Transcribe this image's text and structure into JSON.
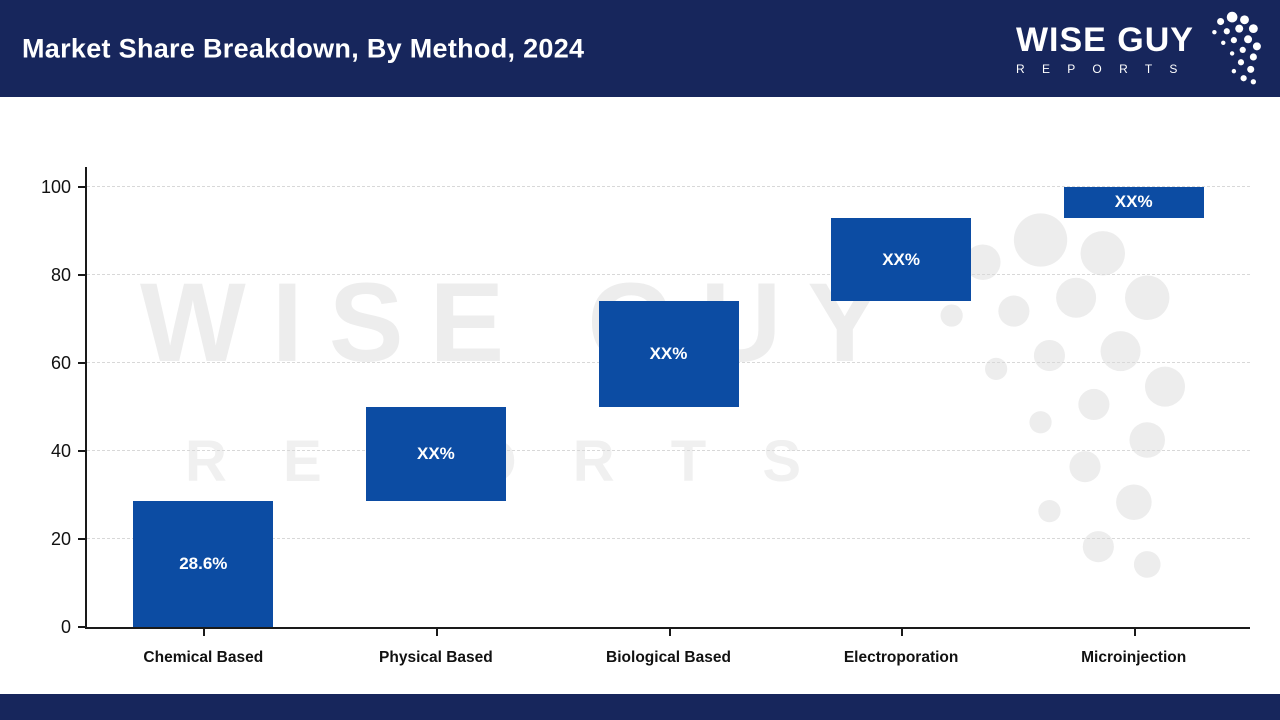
{
  "header": {
    "title": "Market Share Breakdown, By Method, 2024",
    "logo": {
      "line1": "WISE GUY",
      "line2": "R E P O R T S"
    }
  },
  "watermark": {
    "line1": "WISE GUY",
    "line2": "R E P O R T S"
  },
  "colors": {
    "header_bg": "#17265c",
    "footer_bg": "#17265c",
    "bar": "#0c4ca3",
    "bar_label": "#ffffff",
    "gridline": "#d8d8d8",
    "axis": "#1a1a1a",
    "watermark": "#ededed"
  },
  "chart_data": {
    "type": "bar",
    "subtype": "floating-waterfall",
    "title": "Market Share Breakdown, By Method, 2024",
    "categories": [
      "Chemical Based",
      "Physical Based",
      "Biological Based",
      "Electroporation",
      "Microinjection"
    ],
    "segments": [
      {
        "category": "Chemical Based",
        "start": 0,
        "end": 28.6,
        "label": "28.6%"
      },
      {
        "category": "Physical Based",
        "start": 28.6,
        "end": 50,
        "label": "XX%"
      },
      {
        "category": "Biological Based",
        "start": 50,
        "end": 74,
        "label": "XX%"
      },
      {
        "category": "Electroporation",
        "start": 74,
        "end": 93,
        "label": "XX%"
      },
      {
        "category": "Microinjection",
        "start": 93,
        "end": 100,
        "label": "XX%"
      }
    ],
    "ylim": [
      0,
      100
    ],
    "yticks": [
      0,
      20,
      40,
      60,
      80,
      100
    ],
    "grid": "horizontal-dashed",
    "legend": "none",
    "xlabel": "",
    "ylabel": ""
  }
}
